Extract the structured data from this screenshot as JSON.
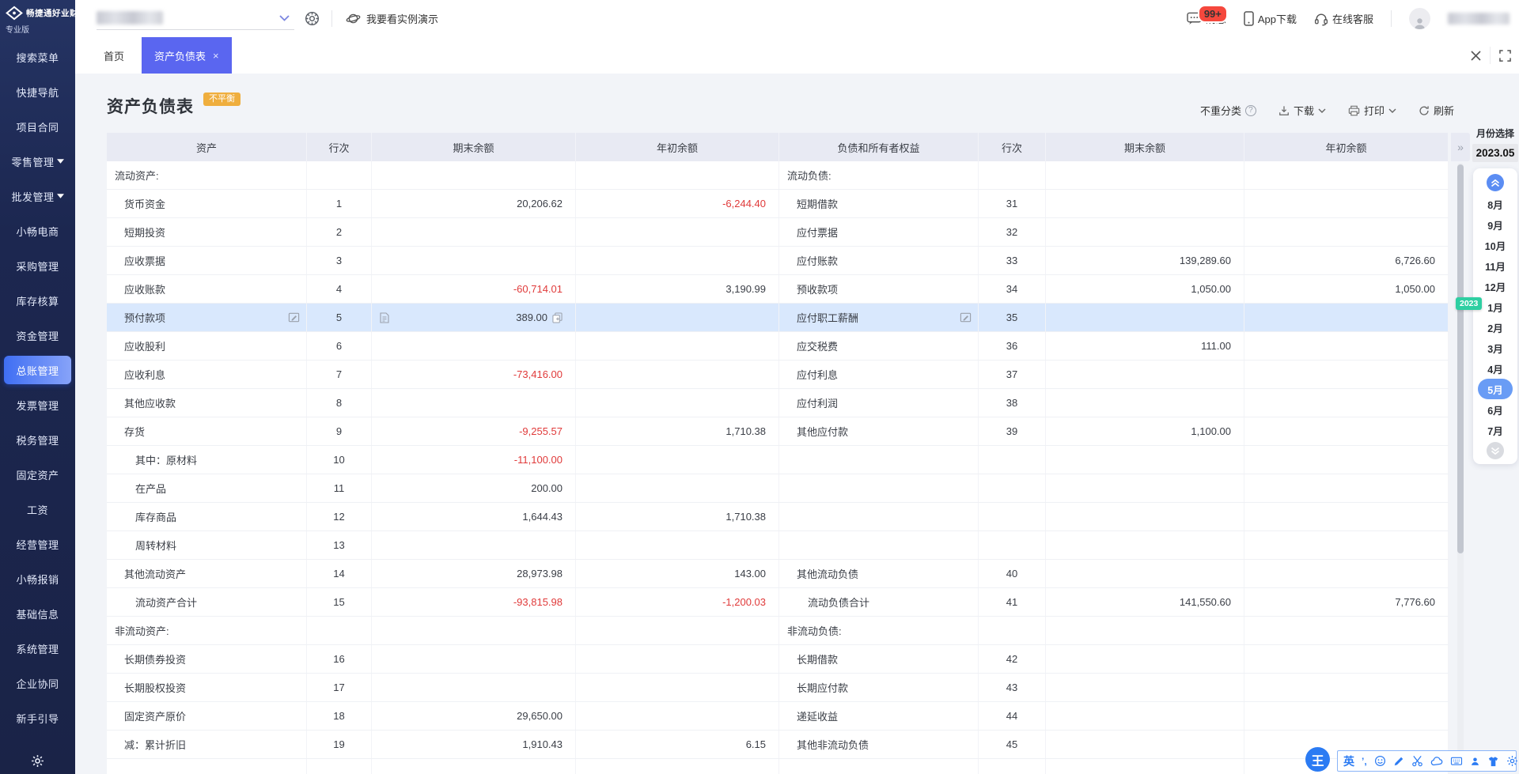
{
  "brand": {
    "name": "畅捷通好业财",
    "edition": "专业版"
  },
  "topbar": {
    "demo_label": "我要看实例演示",
    "messages_label": "消息",
    "messages_badge": "99+",
    "app_download_label": "App下载",
    "online_service_label": "在线客服"
  },
  "sidebar": {
    "items": [
      {
        "label": "搜索菜单"
      },
      {
        "label": "快捷导航"
      },
      {
        "label": "项目合同"
      },
      {
        "label": "零售管理",
        "expandable": true
      },
      {
        "label": "批发管理",
        "expandable": true
      },
      {
        "label": "小畅电商"
      },
      {
        "label": "采购管理"
      },
      {
        "label": "库存核算"
      },
      {
        "label": "资金管理"
      },
      {
        "label": "总账管理",
        "active": true
      },
      {
        "label": "发票管理"
      },
      {
        "label": "税务管理"
      },
      {
        "label": "固定资产"
      },
      {
        "label": "工资"
      },
      {
        "label": "经营管理"
      },
      {
        "label": "小畅报销"
      },
      {
        "label": "基础信息"
      },
      {
        "label": "系统管理"
      },
      {
        "label": "企业协同"
      },
      {
        "label": "新手引导"
      }
    ]
  },
  "tabs": [
    {
      "label": "首页",
      "active": false,
      "closable": false
    },
    {
      "label": "资产负债表",
      "active": true,
      "closable": true
    }
  ],
  "page": {
    "title": "资产负债表",
    "status_badge": "不平衡",
    "toolbar": [
      {
        "id": "reclassify",
        "label": "不重分类",
        "help": true
      },
      {
        "id": "download",
        "label": "下载",
        "icon": "download",
        "dropdown": true
      },
      {
        "id": "print",
        "label": "打印",
        "icon": "printer",
        "dropdown": true
      },
      {
        "id": "refresh",
        "label": "刷新",
        "icon": "refresh"
      }
    ]
  },
  "balance_table": {
    "headers": [
      "资产",
      "行次",
      "期末余额",
      "年初余额",
      "负债和所有者权益",
      "行次",
      "期末余额",
      "年初余额"
    ],
    "rows": [
      {
        "asset": {
          "name": "流动资产:",
          "sec": true
        },
        "liability": {
          "name": "流动负债:",
          "sec": true
        }
      },
      {
        "asset": {
          "name": "货币资金",
          "r": "1",
          "e": "20,206.62",
          "b": "-6,244.40",
          "nb": true
        },
        "liability": {
          "name": "短期借款",
          "r": "31"
        }
      },
      {
        "asset": {
          "name": "短期投资",
          "r": "2"
        },
        "liability": {
          "name": "应付票据",
          "r": "32"
        }
      },
      {
        "asset": {
          "name": "应收票据",
          "r": "3"
        },
        "liability": {
          "name": "应付账款",
          "r": "33",
          "e": "139,289.60",
          "b": "6,726.60"
        }
      },
      {
        "asset": {
          "name": "应收账款",
          "r": "4",
          "e": "-60,714.01",
          "ne": true,
          "b": "3,190.99"
        },
        "liability": {
          "name": "预收款项",
          "r": "34",
          "e": "1,050.00",
          "b": "1,050.00"
        }
      },
      {
        "hl": true,
        "asset": {
          "name": "预付款项",
          "r": "5",
          "e": "389.00",
          "edit": true,
          "doc": true,
          "copy": true
        },
        "liability": {
          "name": "应付职工薪酬",
          "r": "35",
          "edit": true
        }
      },
      {
        "asset": {
          "name": "应收股利",
          "r": "6"
        },
        "liability": {
          "name": "应交税费",
          "r": "36",
          "e": "111.00"
        }
      },
      {
        "asset": {
          "name": "应收利息",
          "r": "7",
          "e": "-73,416.00",
          "ne": true
        },
        "liability": {
          "name": "应付利息",
          "r": "37"
        }
      },
      {
        "asset": {
          "name": "其他应收款",
          "r": "8"
        },
        "liability": {
          "name": "应付利润",
          "r": "38"
        }
      },
      {
        "asset": {
          "name": "存货",
          "r": "9",
          "e": "-9,255.57",
          "ne": true,
          "b": "1,710.38"
        },
        "liability": {
          "name": "其他应付款",
          "r": "39",
          "e": "1,100.00"
        }
      },
      {
        "asset": {
          "name": "其中：原材料",
          "r": "10",
          "e": "-11,100.00",
          "ne": true,
          "ind": true
        },
        "liability": {}
      },
      {
        "asset": {
          "name": "在产品",
          "r": "11",
          "e": "200.00",
          "ind": true
        },
        "liability": {}
      },
      {
        "asset": {
          "name": "库存商品",
          "r": "12",
          "e": "1,644.43",
          "b": "1,710.38",
          "ind": true
        },
        "liability": {}
      },
      {
        "asset": {
          "name": "周转材料",
          "r": "13",
          "ind": true
        },
        "liability": {}
      },
      {
        "asset": {
          "name": "其他流动资产",
          "r": "14",
          "e": "28,973.98",
          "b": "143.00"
        },
        "liability": {
          "name": "其他流动负债",
          "r": "40"
        }
      },
      {
        "asset": {
          "name": "流动资产合计",
          "r": "15",
          "e": "-93,815.98",
          "ne": true,
          "b": "-1,200.03",
          "nb": true,
          "ind": true
        },
        "liability": {
          "name": "流动负债合计",
          "r": "41",
          "e": "141,550.60",
          "b": "7,776.60",
          "ind": true
        }
      },
      {
        "asset": {
          "name": "非流动资产:",
          "sec": true
        },
        "liability": {
          "name": "非流动负债:",
          "sec": true
        }
      },
      {
        "asset": {
          "name": "长期债券投资",
          "r": "16"
        },
        "liability": {
          "name": "长期借款",
          "r": "42"
        }
      },
      {
        "asset": {
          "name": "长期股权投资",
          "r": "17"
        },
        "liability": {
          "name": "长期应付款",
          "r": "43"
        }
      },
      {
        "asset": {
          "name": "固定资产原价",
          "r": "18",
          "e": "29,650.00"
        },
        "liability": {
          "name": "递延收益",
          "r": "44"
        }
      },
      {
        "asset": {
          "name": "减：累计折旧",
          "r": "19",
          "e": "1,910.43",
          "b": "6.15"
        },
        "liability": {
          "name": "其他非流动负债",
          "r": "45"
        }
      },
      {
        "asset": {},
        "liability": {}
      }
    ]
  },
  "month_panel": {
    "title": "月份选择",
    "current": "2023.05",
    "year_tag": "2023",
    "months": [
      "8月",
      "9月",
      "10月",
      "11月",
      "12月",
      "1月",
      "2月",
      "3月",
      "4月",
      "5月",
      "6月",
      "7月"
    ],
    "selected_month": "5月"
  },
  "ime": {
    "logo_text": "王",
    "lang_label": "英",
    "punct_label": "’,"
  },
  "colors": {
    "sidebar_bg": "#1c2750",
    "sidebar_active": "#3f6ef3",
    "tab_active": "#5a66f0",
    "badge_bg": "#efae3e",
    "negative_number": "#e03a3a",
    "row_highlight": "#d9e8fd",
    "table_header_bg": "#e8eaf3",
    "month_selected": "#699cf5",
    "year_tag_bg": "#2ecfa2",
    "ime_blue": "#2b7bf3",
    "message_badge_bg": "#f5483d"
  }
}
